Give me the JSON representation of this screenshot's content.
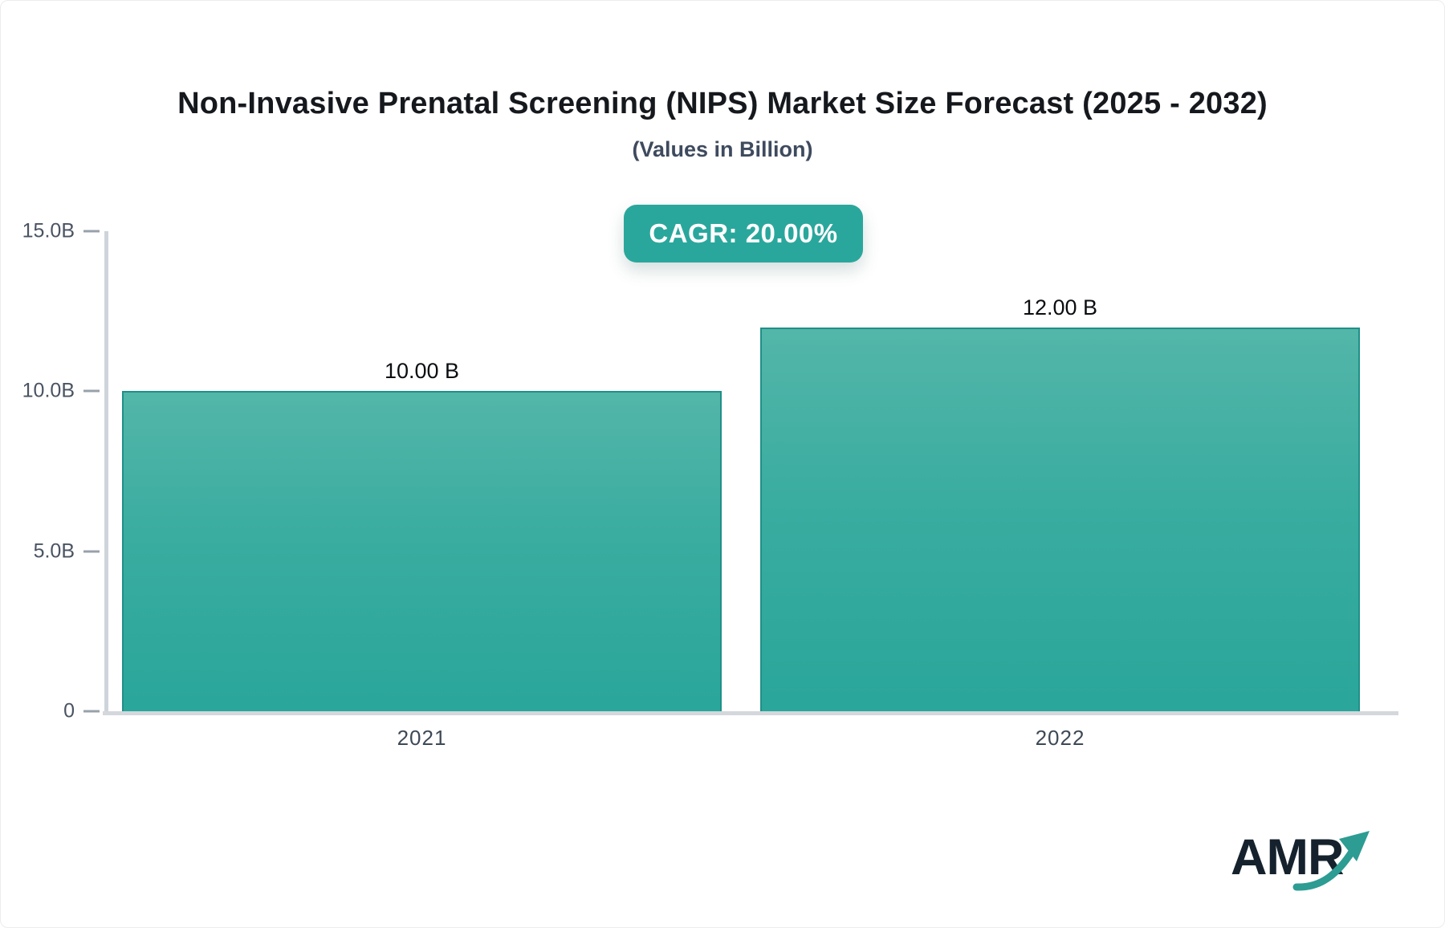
{
  "title": "Non-Invasive Prenatal Screening (NIPS) Market Size Forecast (2025 - 2032)",
  "subtitle": "(Values in Billion)",
  "badge": {
    "label": "CAGR: 20.00%"
  },
  "chart_data": {
    "type": "bar",
    "title": "Non-Invasive Prenatal Screening (NIPS) Market Size Forecast (2025 - 2032)",
    "subtitle": "(Values in Billion)",
    "categories": [
      "2021",
      "2022"
    ],
    "values": [
      10.0,
      12.0
    ],
    "value_labels": [
      "10.00 B",
      "12.00 B"
    ],
    "cagr": "20.00%",
    "xlabel": "",
    "ylabel": "",
    "unit": "Billion",
    "ylim": [
      0,
      15
    ],
    "yticks": [
      {
        "value": 15,
        "label": "15.0B"
      },
      {
        "value": 10,
        "label": "10.0B"
      },
      {
        "value": 5,
        "label": "5.0B"
      },
      {
        "value": 0,
        "label": "0"
      }
    ],
    "grid": false,
    "legend": false,
    "bar_color_top": "#53b6a9",
    "bar_color_bottom": "#2aa69a",
    "bar_border_color": "#1f9088"
  },
  "logo": {
    "text": "AMR",
    "arrow_icon": "trending-up-arrow",
    "text_color": "#15222d",
    "arrow_color": "#2d9c93"
  },
  "colors": {
    "accent_teal": "#2aa79c",
    "axis_line": "#cfd4db",
    "baseline": "#d4d7dc",
    "tick": "#98a0ab"
  }
}
